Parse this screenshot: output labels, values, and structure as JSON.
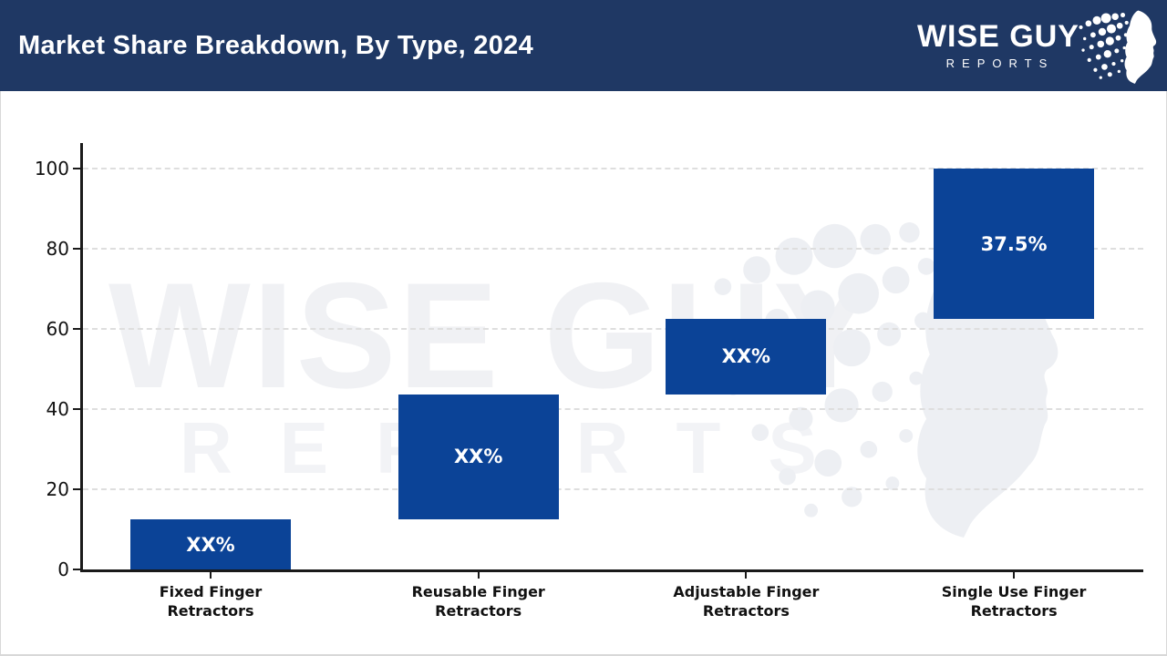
{
  "header": {
    "title": "Market Share Breakdown, By Type, 2024",
    "logo": {
      "line1": "WISE GUY",
      "line2": "REPORTS"
    }
  },
  "watermark": {
    "line1": "WISE GUY",
    "line2": "REPORTS"
  },
  "colors": {
    "header_bg": "#1f3864",
    "bar": "#0b4397",
    "axis": "#1a1a1a",
    "gridline": "#dedede",
    "bar_label": "#ffffff",
    "watermark": "#f0f1f4"
  },
  "chart_data": {
    "type": "bar",
    "subtype": "waterfall",
    "title": "Market Share Breakdown, By Type, 2024",
    "xlabel": "",
    "ylabel": "",
    "ylim": [
      0,
      105
    ],
    "yticks": [
      0,
      20,
      40,
      60,
      80,
      100
    ],
    "grid": "horizontal-dashed",
    "legend": "none",
    "categories": [
      "Fixed Finger Retractors",
      "Reusable Finger Retractors",
      "Adjustable Finger Retractors",
      "Single Use Finger Retractors"
    ],
    "category_label_lines": [
      [
        "Fixed Finger",
        "Retractors"
      ],
      [
        "Reusable Finger",
        "Retractors"
      ],
      [
        "Adjustable Finger",
        "Retractors"
      ],
      [
        "Single Use Finger",
        "Retractors"
      ]
    ],
    "segments": [
      {
        "category": "Fixed Finger Retractors",
        "start": 0,
        "end": 12.5,
        "value": 12.5,
        "label": "XX%"
      },
      {
        "category": "Reusable Finger Retractors",
        "start": 12.5,
        "end": 43.75,
        "value": 31.25,
        "label": "XX%"
      },
      {
        "category": "Adjustable Finger Retractors",
        "start": 43.75,
        "end": 62.5,
        "value": 18.75,
        "label": "XX%"
      },
      {
        "category": "Single Use Finger Retractors",
        "start": 62.5,
        "end": 100,
        "value": 37.5,
        "label": "37.5%"
      }
    ]
  }
}
